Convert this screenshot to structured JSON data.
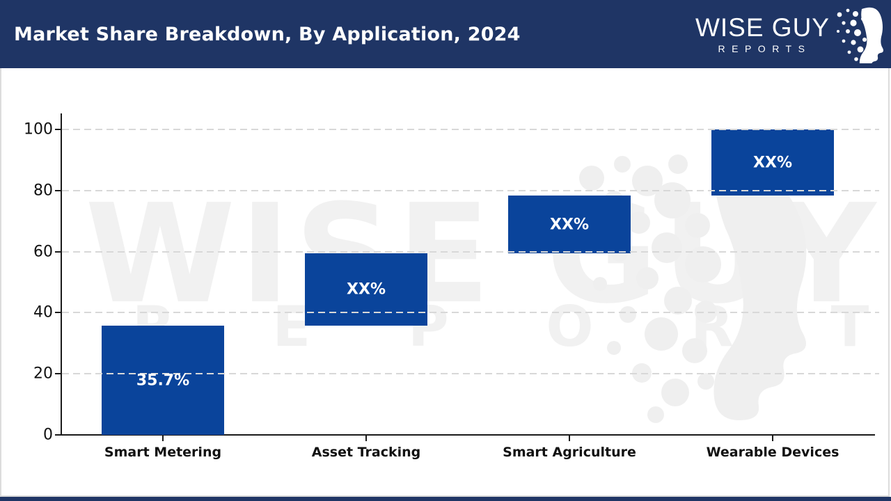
{
  "header": {
    "title": "Market Share Breakdown, By Application, 2024",
    "logo": {
      "line1": "WISE GUY",
      "line2": "REPORTS"
    }
  },
  "watermark": {
    "line1": "WISE GUY",
    "line2": "REPORTS"
  },
  "colors": {
    "header_bg": "#1f3565",
    "bar_blue": "#0a449b",
    "gridline": "#d8d8d8",
    "watermark": "#f1f1f1",
    "bar_label_text": "#ffffff",
    "axis_text": "#111111"
  },
  "chart_data": {
    "type": "bar",
    "subtype": "waterfall",
    "title": "Market Share Breakdown, By Application, 2024",
    "categories": [
      "Smart Metering",
      "Asset Tracking",
      "Smart Agriculture",
      "Wearable Devices"
    ],
    "bars": [
      {
        "category": "Smart Metering",
        "start": 0,
        "end": 35.7,
        "label": "35.7%"
      },
      {
        "category": "Asset Tracking",
        "start": 35.7,
        "end": 59.5,
        "label": "XX%"
      },
      {
        "category": "Smart Agriculture",
        "start": 59.5,
        "end": 78.3,
        "label": "XX%"
      },
      {
        "category": "Wearable Devices",
        "start": 78.3,
        "end": 100,
        "label": "XX%"
      }
    ],
    "xlabel": "",
    "ylabel": "",
    "ylim": [
      0,
      105
    ],
    "yticks": [
      0,
      20,
      40,
      60,
      80,
      100
    ],
    "grid": "dashed-horizontal",
    "legend": "none"
  }
}
